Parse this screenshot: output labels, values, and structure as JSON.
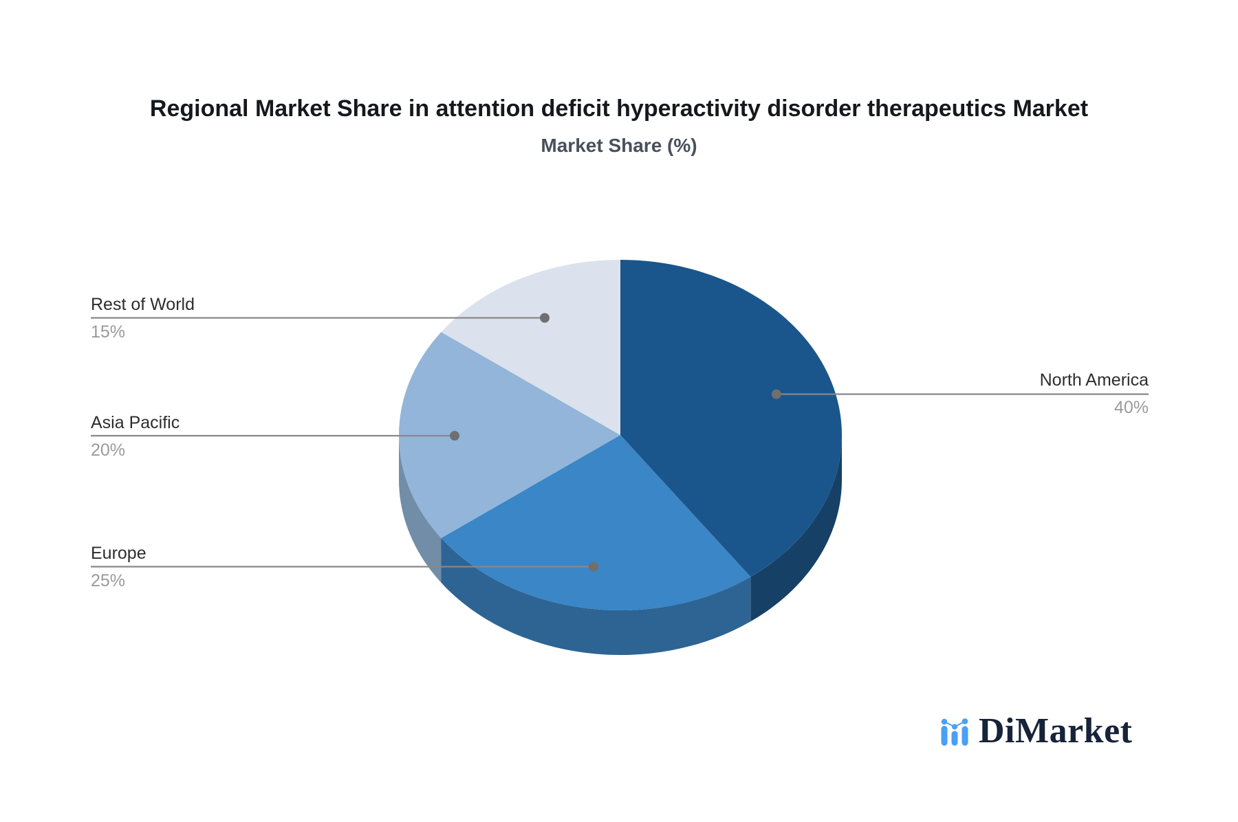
{
  "header": {
    "title": "Regional Market Share in attention deficit hyperactivity disorder therapeutics Market",
    "subtitle": "Market Share (%)"
  },
  "chart_data": {
    "type": "pie",
    "title": "Regional Market Share in attention deficit hyperactivity disorder therapeutics Market",
    "subtitle": "Market Share (%)",
    "unit": "percent",
    "style": "3d-pie",
    "start_angle_deg": 90,
    "direction": "clockwise",
    "legend_position": "callout-labels",
    "segments": [
      {
        "label": "North America",
        "value": 40,
        "display": "40%",
        "color": "#1a568c",
        "side_color": "#164066"
      },
      {
        "label": "Europe",
        "value": 25,
        "display": "25%",
        "color": "#3a86c6",
        "side_color": "#2d6494"
      },
      {
        "label": "Asia Pacific",
        "value": 20,
        "display": "20%",
        "color": "#92b5d9",
        "side_color": "#718da7"
      },
      {
        "label": "Rest of World",
        "value": 15,
        "display": "15%",
        "color": "#dbe2ed",
        "side_color": "#a9b5c4"
      }
    ]
  },
  "logo": {
    "text": "DiMarket",
    "icon": "bar-line-chart-icon",
    "icon_color": "#4b9ff5",
    "text_color": "#16233a"
  },
  "colors": {
    "background": "#ffffff",
    "title_text": "#15181d",
    "subtitle_text": "#47505c",
    "category_label_text": "#2d2d2d",
    "percent_label_text": "#9a9a9a",
    "leader_line": "#888888",
    "leader_dot": "#6f6f6f"
  }
}
